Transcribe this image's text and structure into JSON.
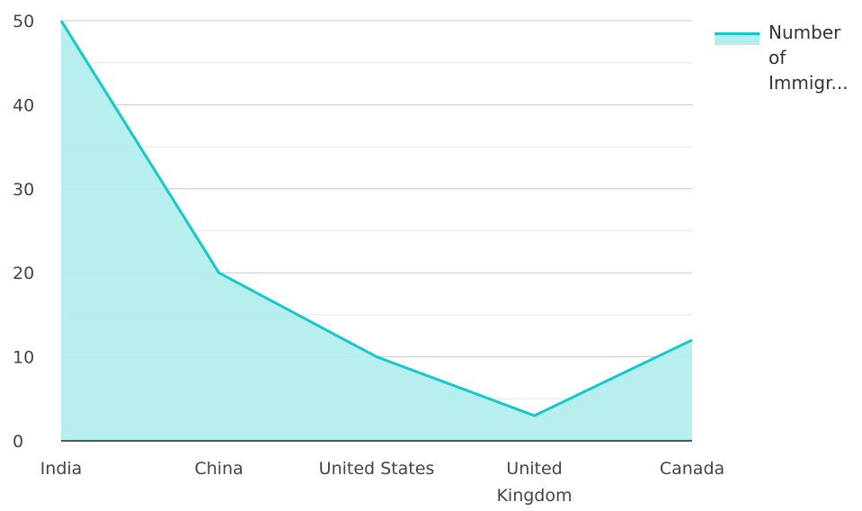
{
  "chart_data": {
    "type": "area",
    "categories": [
      "India",
      "China",
      "United States",
      "United Kingdom",
      "Canada"
    ],
    "series": [
      {
        "name": "Number of Immigr...",
        "values": [
          50,
          20,
          10,
          3,
          12
        ]
      }
    ],
    "ylim": [
      0,
      50
    ],
    "yticks": [
      0,
      10,
      20,
      30,
      40,
      50
    ],
    "grid": true,
    "legend_position": "top-right",
    "colors": {
      "line": "#17c8c8",
      "fill": "#b2eeed",
      "grid": "#cccccc",
      "axis": "#222222"
    }
  },
  "legend": {
    "label_lines": [
      "Number",
      "of",
      "Immigr..."
    ]
  }
}
